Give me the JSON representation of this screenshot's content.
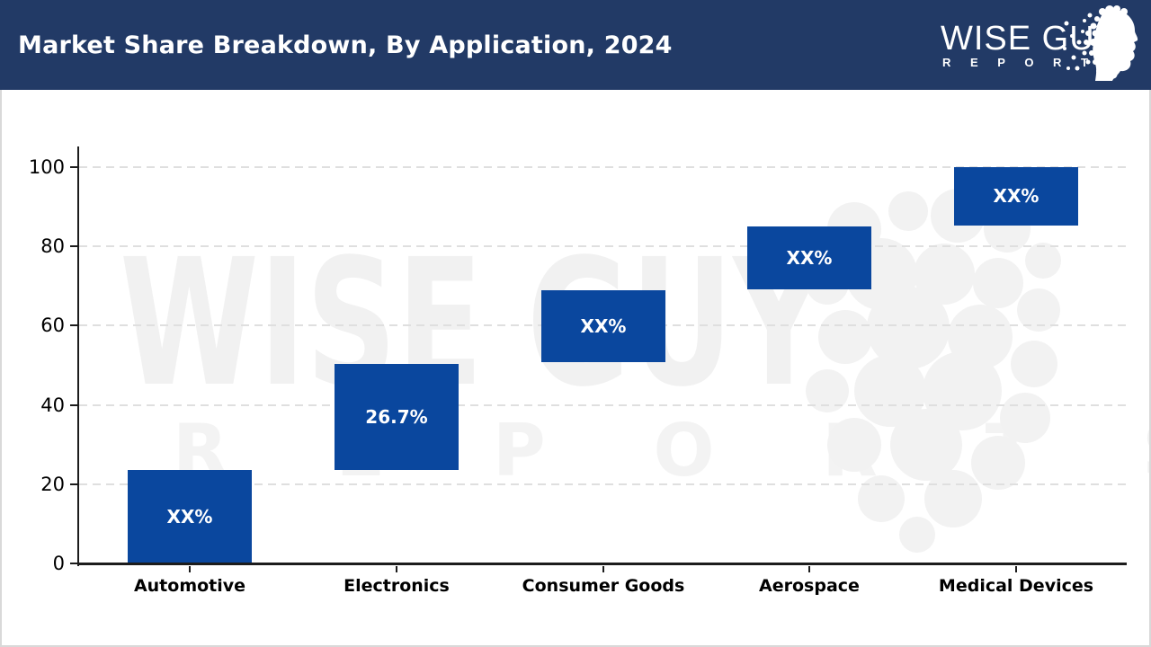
{
  "header": {
    "title": "Market Share Breakdown, By Application, 2024",
    "logo": {
      "name_line": "WISE GUY",
      "sub_line": "R E P O R T S"
    }
  },
  "watermark": {
    "name_line": "WISE GUY",
    "sub_line": "R E P O R T S"
  },
  "colors": {
    "header_bg": "#223a66",
    "bar_blue": "#0a479e",
    "bar_label": "#ffffff",
    "grid_line": "#dfdfdf",
    "axis_line": "#1c1c1c",
    "tick_label": "#000000",
    "watermark_gray": "#f1f1f1",
    "page_border": "#d9d9d9"
  },
  "chart_data": {
    "type": "bar",
    "variant": "waterfall",
    "title": "Market Share Breakdown, By Application, 2024",
    "xlabel": "",
    "ylabel": "",
    "ylim": [
      0,
      100
    ],
    "yticks": [
      0,
      20,
      40,
      60,
      80,
      100
    ],
    "grid": "horizontal-dashed",
    "legend": "none",
    "categories": [
      "Automotive",
      "Electronics",
      "Consumer Goods",
      "Aerospace",
      "Medical Devices"
    ],
    "segments": [
      {
        "category": "Automotive",
        "start": 0,
        "end": 23.6,
        "value": 23.6,
        "value_label": "XX%"
      },
      {
        "category": "Electronics",
        "start": 23.6,
        "end": 50.3,
        "value": 26.7,
        "value_label": "26.7%"
      },
      {
        "category": "Consumer Goods",
        "start": 50.8,
        "end": 68.9,
        "value": 18.1,
        "value_label": "XX%"
      },
      {
        "category": "Aerospace",
        "start": 69.2,
        "end": 85.0,
        "value": 15.8,
        "value_label": "XX%"
      },
      {
        "category": "Medical Devices",
        "start": 85.3,
        "end": 100.0,
        "value": 14.7,
        "value_label": "XX%"
      }
    ]
  }
}
